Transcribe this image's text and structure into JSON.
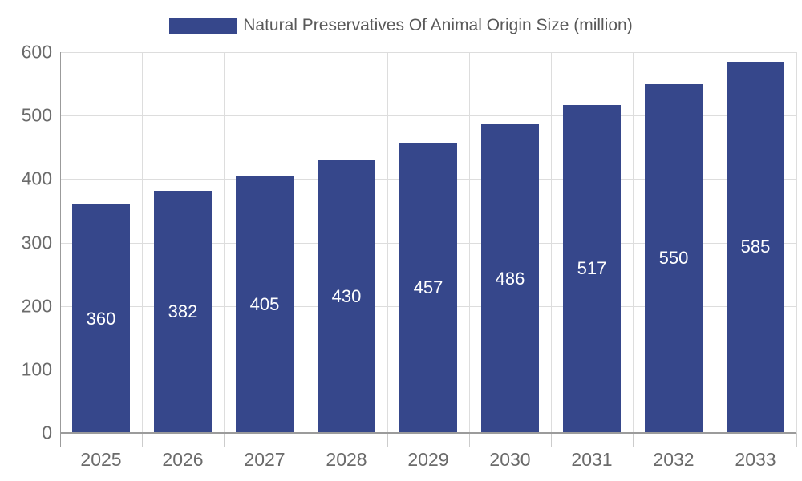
{
  "legend": {
    "label": "Natural Preservatives Of Animal Origin Size (million)"
  },
  "chart_data": {
    "type": "bar",
    "title": "Natural Preservatives Of Animal Origin Size (million)",
    "categories": [
      "2025",
      "2026",
      "2027",
      "2028",
      "2029",
      "2030",
      "2031",
      "2032",
      "2033"
    ],
    "values": [
      360,
      382,
      405,
      430,
      457,
      486,
      517,
      550,
      585
    ],
    "xlabel": "",
    "ylabel": "",
    "ylim": [
      0,
      600
    ],
    "yticks": [
      0,
      100,
      200,
      300,
      400,
      500,
      600
    ],
    "grid": true,
    "legend_position": "top",
    "colors": {
      "bar": "#36478b",
      "bar_value_label": "#ffffff",
      "axis_label": "#6b6b6b",
      "legend_text": "#595959",
      "grid_line": "#dddddd",
      "axis_line": "#9b9b9b",
      "tick": "#cccccc",
      "background": "#ffffff"
    }
  }
}
